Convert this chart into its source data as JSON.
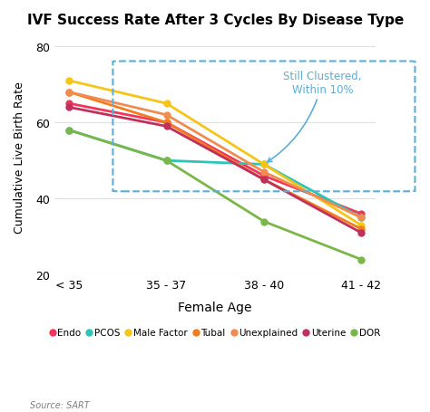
{
  "title": "IVF Success Rate After 3 Cycles By Disease Type",
  "xlabel": "Female Age",
  "ylabel": "Cumulative Live Birth Rate",
  "source": "Source: SART",
  "x_labels": [
    "< 35",
    "35 - 37",
    "38 - 40",
    "41 - 42"
  ],
  "series": [
    {
      "label": "Endo",
      "color": "#f0365a",
      "values": [
        65,
        60,
        46,
        36
      ]
    },
    {
      "label": "PCOS",
      "color": "#2ec4b6",
      "values": [
        58,
        50,
        49,
        35
      ]
    },
    {
      "label": "Male Factor",
      "color": "#f5c518",
      "values": [
        71,
        65,
        49,
        33
      ]
    },
    {
      "label": "Tubal",
      "color": "#f47c20",
      "values": [
        68,
        60,
        45,
        32
      ]
    },
    {
      "label": "Unexplained",
      "color": "#f08c50",
      "values": [
        68,
        62,
        47,
        35
      ]
    },
    {
      "label": "Uterine",
      "color": "#c0305a",
      "values": [
        64,
        59,
        45,
        31
      ]
    },
    {
      "label": "DOR",
      "color": "#7ab648",
      "values": [
        58,
        50,
        34,
        24
      ]
    }
  ],
  "ylim": [
    20,
    82
  ],
  "yticks": [
    20,
    40,
    60,
    80
  ],
  "annotation_text": "Still Clustered,\nWithin 10%",
  "annotation_color": "#5bafd6",
  "dashed_ellipse_color": "#5bafd6",
  "bg_color": "#ffffff",
  "grid_color": "#e0e0e0"
}
